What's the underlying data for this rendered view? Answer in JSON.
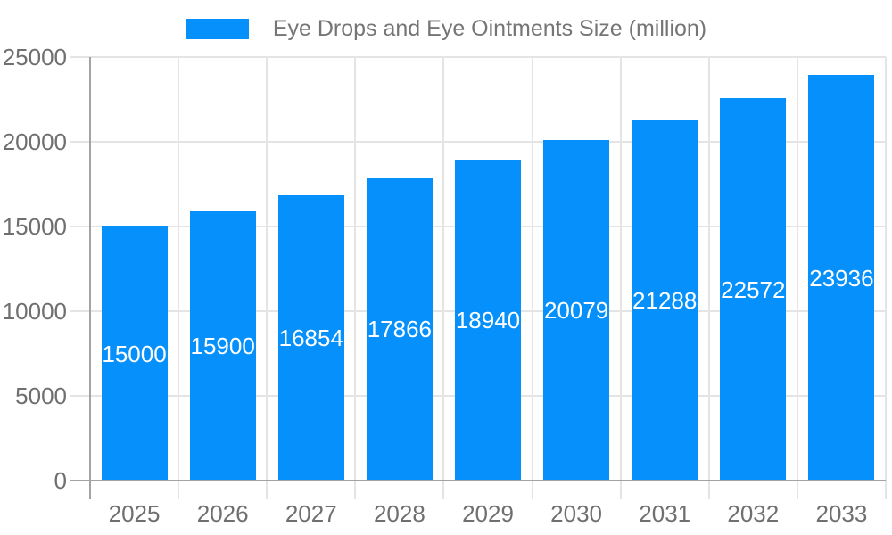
{
  "legend": {
    "label": "Eye Drops and Eye Ointments Size (million)"
  },
  "colors": {
    "background": "#ffffff",
    "bar": "#0590fb",
    "axis_line": "#a3a3a3",
    "gridline": "#e4e4e4",
    "tick_label": "#6f6f6f",
    "legend_label": "#757575",
    "bar_value_label": "#ffffff"
  },
  "chart_data": {
    "type": "bar",
    "title": "Eye Drops and Eye Ointments Size (million)",
    "series_name": "Eye Drops and Eye Ointments Size (million)",
    "categories": [
      "2025",
      "2026",
      "2027",
      "2028",
      "2029",
      "2030",
      "2031",
      "2032",
      "2033"
    ],
    "values": [
      15000,
      15900,
      16854,
      17866,
      18940,
      20079,
      21288,
      22572,
      23936
    ],
    "xlabel": "",
    "ylabel": "",
    "ylim": [
      0,
      25000
    ],
    "yticks": [
      0,
      5000,
      10000,
      15000,
      20000,
      25000
    ],
    "grid": true,
    "legend_position": "top",
    "value_labels": "inside-vertical-center"
  }
}
